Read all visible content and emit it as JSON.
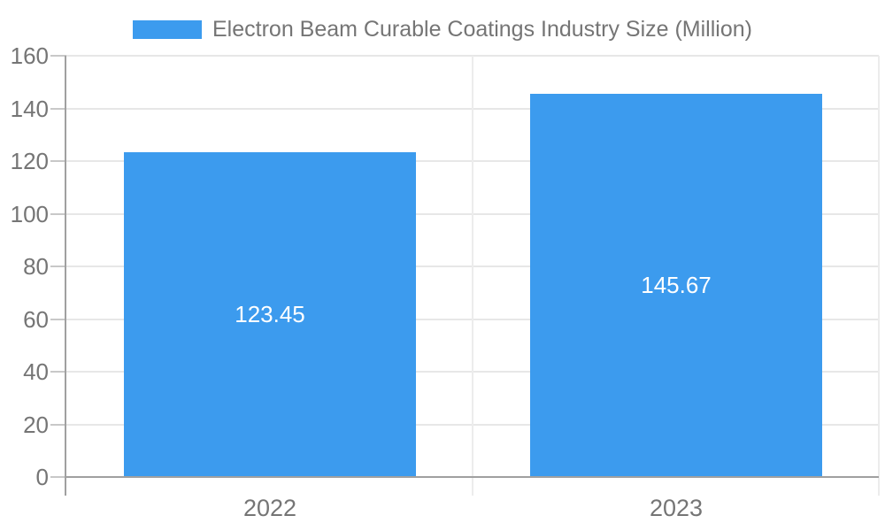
{
  "chart_data": {
    "type": "bar",
    "title": "Electron Beam Curable Coatings Industry Size (Million)",
    "categories": [
      "2022",
      "2023"
    ],
    "values": [
      123.45,
      145.67
    ],
    "value_labels": [
      "123.45",
      "145.67"
    ],
    "y_ticks": [
      0,
      20,
      40,
      60,
      80,
      100,
      120,
      140,
      160
    ],
    "ylim": [
      0,
      160
    ],
    "grid": true,
    "legend_position": "top"
  },
  "colors": {
    "bar": "#3C9BEE",
    "data_label": "#ffffff",
    "axis_text": "#757575",
    "axis_line": "#a0a0a0",
    "gridline": "#e7e7e7",
    "boundary_line": "#ececec",
    "tick": "#c8c8c8",
    "background": "#ffffff"
  }
}
